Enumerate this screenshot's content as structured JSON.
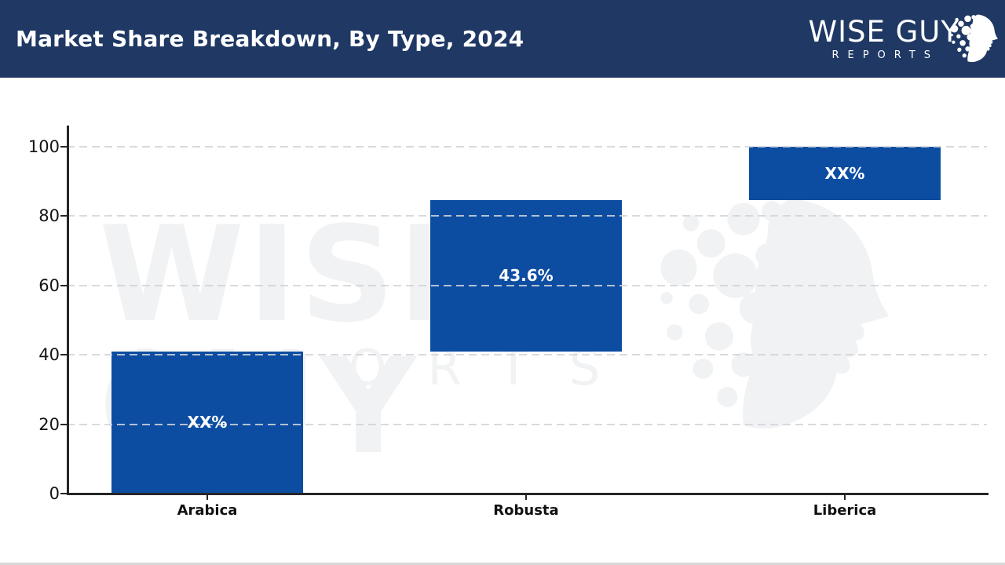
{
  "header": {
    "title": "Market Share Breakdown, By Type, 2024",
    "logo": {
      "line1": "WISE GUY",
      "line2": "REPORTS"
    }
  },
  "watermark": {
    "line1": "WISE GUY",
    "line2": "REPORTS"
  },
  "chart_data": {
    "type": "bar",
    "subtype": "waterfall-breakdown",
    "title": "Market Share Breakdown, By Type, 2024",
    "categories": [
      "Arabica",
      "Robusta",
      "Liberica"
    ],
    "values": [
      41,
      43.6,
      15.4
    ],
    "segments": [
      {
        "category": "Arabica",
        "start": 0,
        "end": 41,
        "label": "XX%"
      },
      {
        "category": "Robusta",
        "start": 41,
        "end": 84.6,
        "label": "43.6%"
      },
      {
        "category": "Liberica",
        "start": 84.6,
        "end": 100,
        "label": "XX%"
      }
    ],
    "yticks": [
      0,
      20,
      40,
      60,
      80,
      100
    ],
    "ylim": [
      0,
      106
    ],
    "xlabel": "",
    "ylabel": "",
    "grid": "horizontal-dashed",
    "legend": "none",
    "bar_color": "#0C4DA2",
    "bar_label_color": "#ffffff",
    "gridline_color": "#d9dbdf",
    "axis_color": "#262626",
    "header_bg": "#1F3864",
    "watermark_color": "#f1f2f4"
  }
}
